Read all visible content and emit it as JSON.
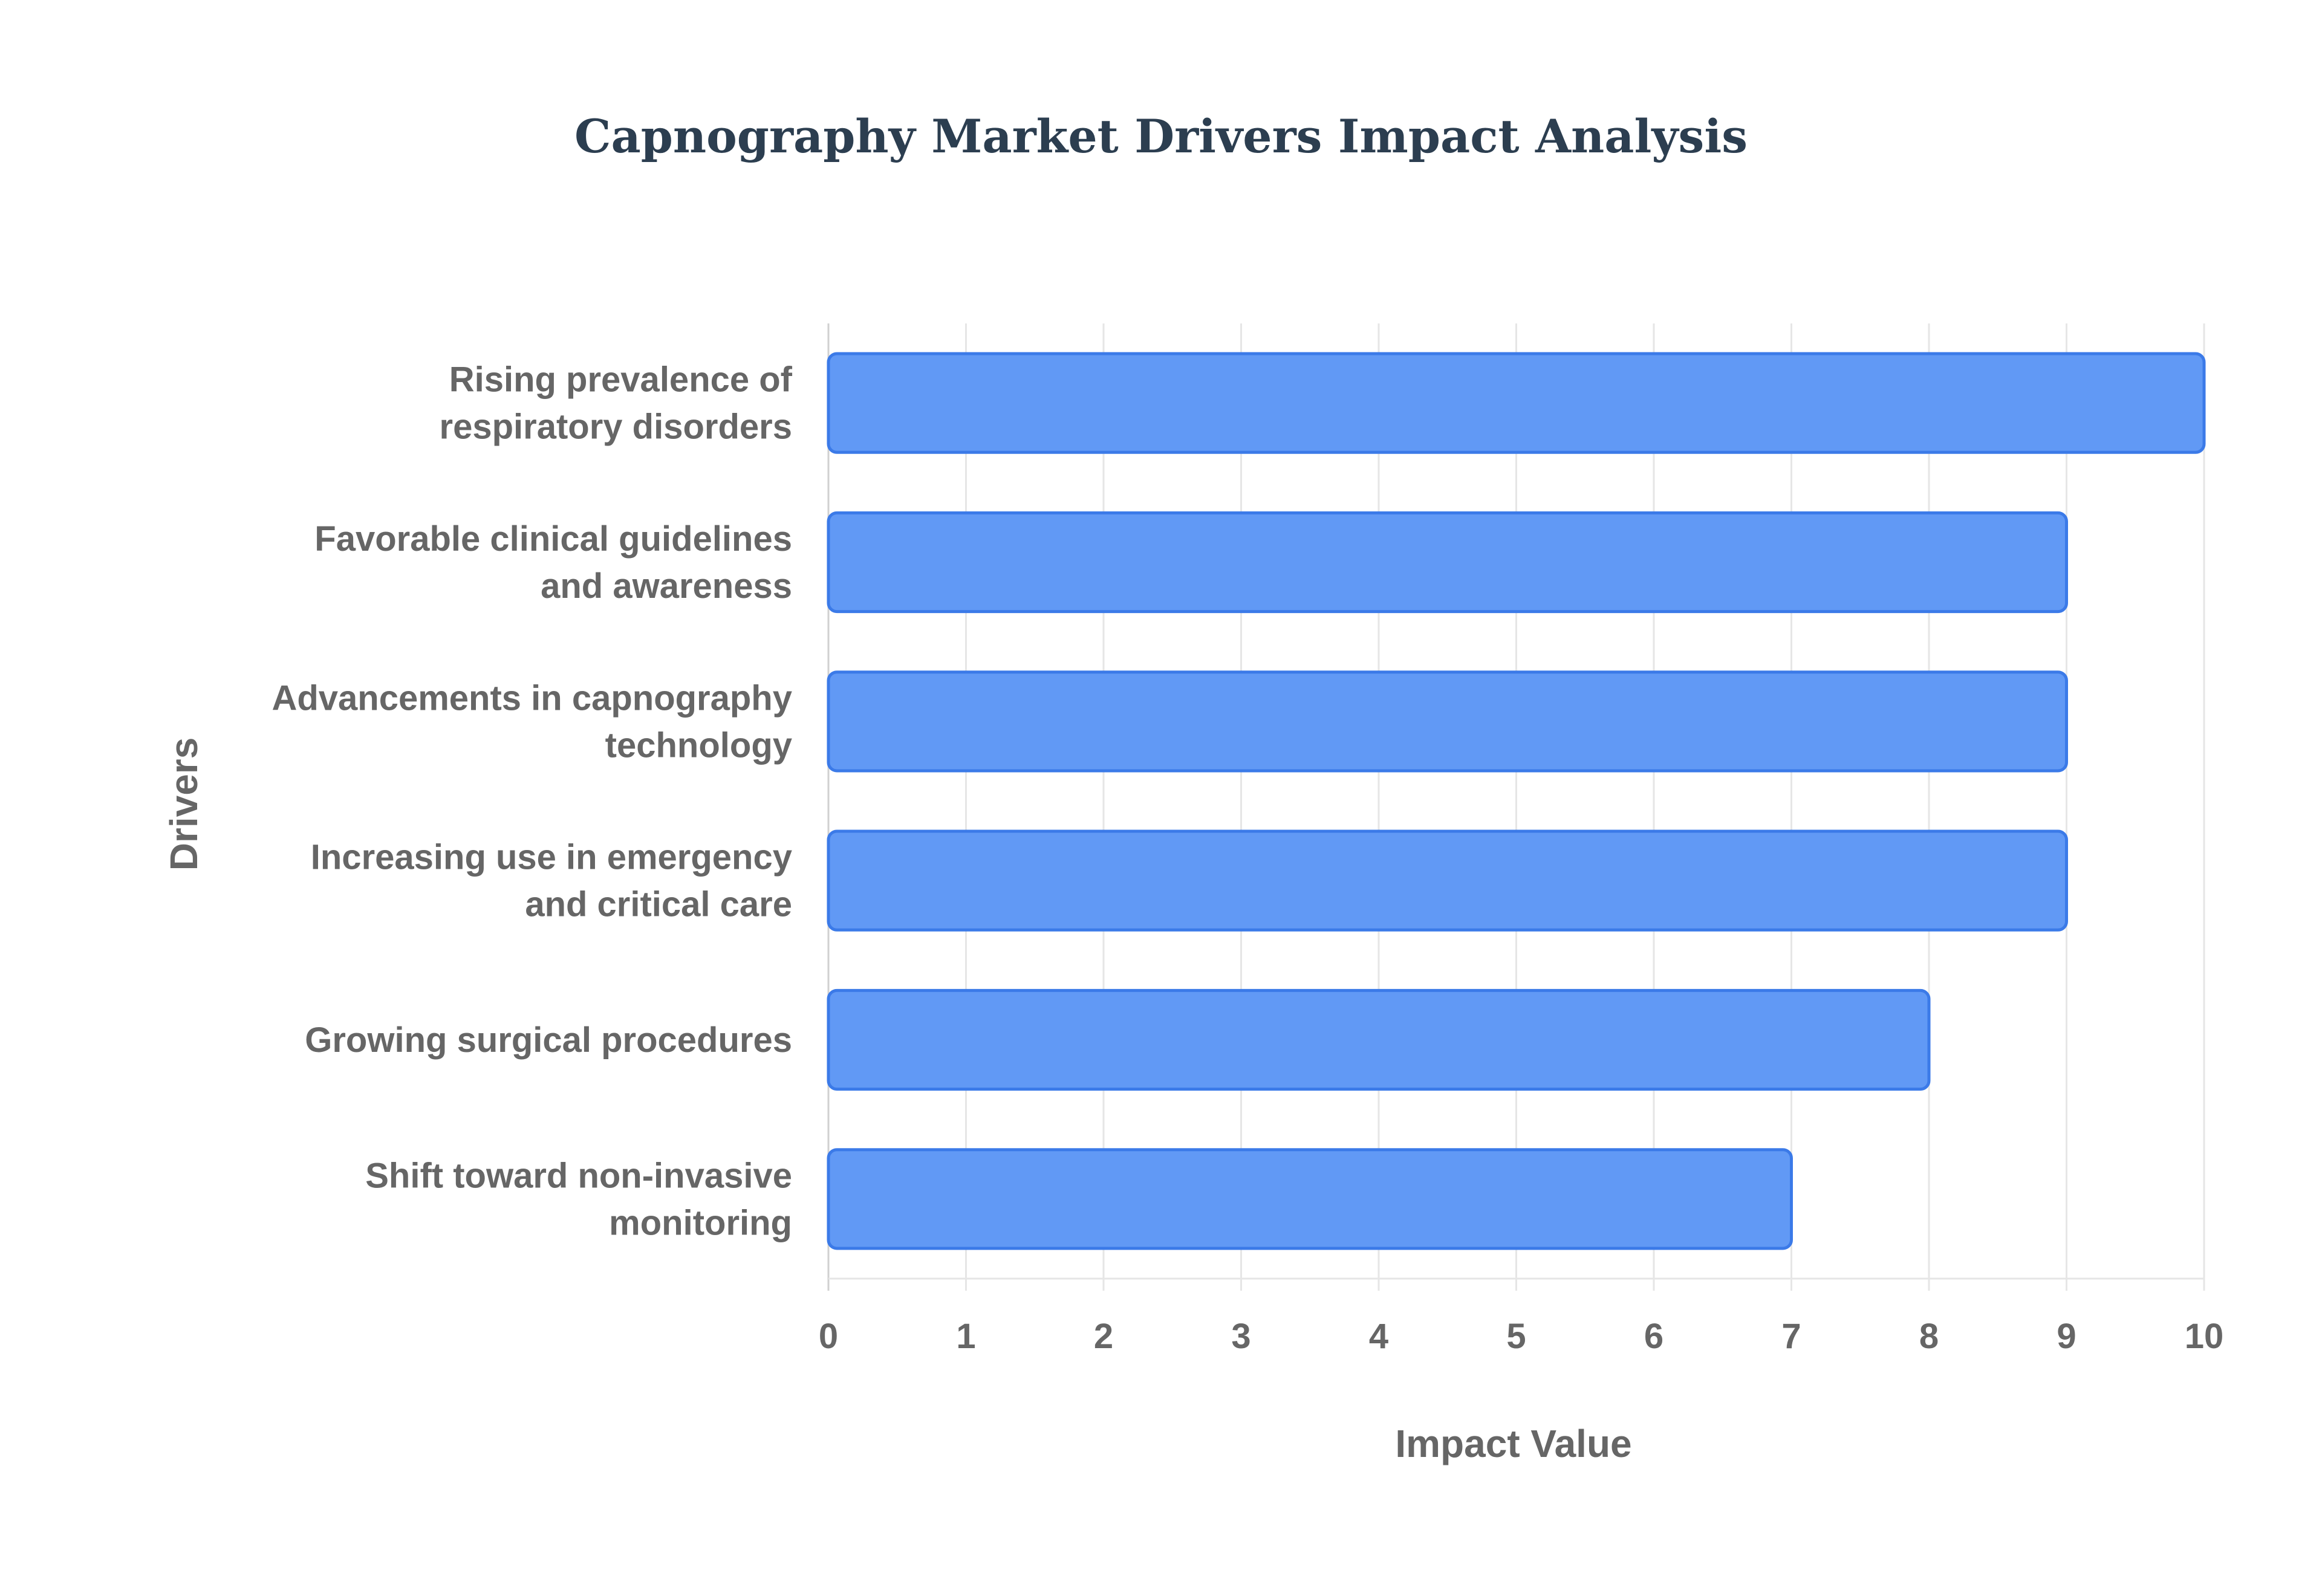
{
  "chart_data": {
    "type": "bar",
    "orientation": "horizontal",
    "title": "Capnography Market Drivers Impact Analysis",
    "xlabel": "Impact Value",
    "ylabel": "Drivers",
    "xlim": [
      0,
      10
    ],
    "x_ticks": [
      "0",
      "1",
      "2",
      "3",
      "4",
      "5",
      "6",
      "7",
      "8",
      "9",
      "10"
    ],
    "grid": true,
    "legend": "none",
    "bar_color": "#6199f5",
    "bar_border_color": "#3b7ae8",
    "categories": [
      [
        "Rising prevalence of",
        "respiratory disorders"
      ],
      [
        "Favorable clinical guidelines",
        "and awareness"
      ],
      [
        "Advancements in capnography",
        "technology"
      ],
      [
        "Increasing use in emergency",
        "and critical care"
      ],
      [
        "Growing surgical procedures"
      ],
      [
        "Shift toward non-invasive",
        "monitoring"
      ]
    ],
    "values": [
      10,
      9,
      9,
      9,
      8,
      7
    ]
  }
}
